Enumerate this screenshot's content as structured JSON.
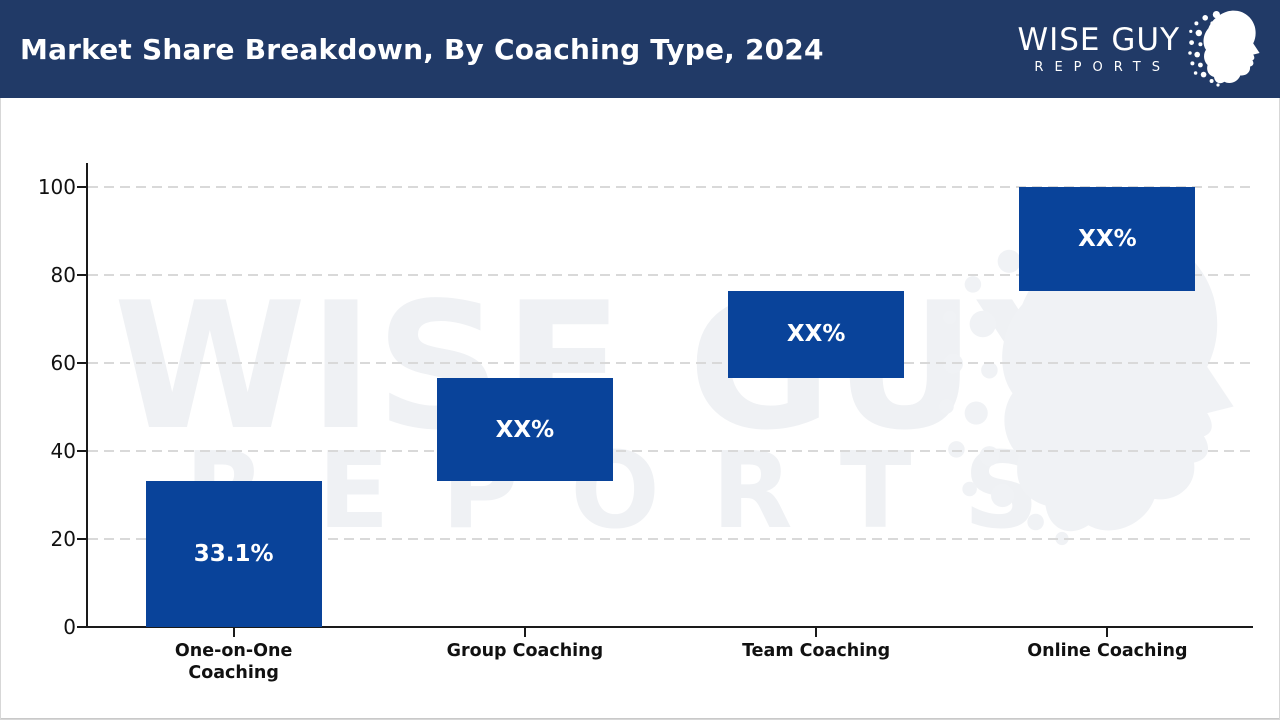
{
  "header": {
    "title": "Market Share Breakdown, By Coaching Type, 2024",
    "logo": {
      "line1": "WISE GUY",
      "line2": "REPORTS"
    }
  },
  "watermark": {
    "line1": "WISE GUY",
    "line2": "REPORTS"
  },
  "colors": {
    "header_navy": "#213a67",
    "bar_blue": "#09439a",
    "watermark_gray": "#eff1f4",
    "axis_black": "#1a1a1a"
  },
  "chart_data": {
    "type": "bar",
    "subtype": "waterfall",
    "title": "Market Share Breakdown, By Coaching Type, 2024",
    "xlabel": "",
    "ylabel": "",
    "categories": [
      "One-on-One Coaching",
      "Group Coaching",
      "Team Coaching",
      "Online Coaching"
    ],
    "bars": [
      {
        "category": "One-on-One Coaching",
        "tick_lines": [
          "One-on-One",
          "Coaching"
        ],
        "start": 0,
        "end": 33.1,
        "label": "33.1%"
      },
      {
        "category": "Group Coaching",
        "tick_lines": [
          "Group Coaching"
        ],
        "start": 33.1,
        "end": 56.6,
        "label": "XX%"
      },
      {
        "category": "Team Coaching",
        "tick_lines": [
          "Team Coaching"
        ],
        "start": 56.6,
        "end": 76.4,
        "label": "XX%"
      },
      {
        "category": "Online Coaching",
        "tick_lines": [
          "Online Coaching"
        ],
        "start": 76.4,
        "end": 100,
        "label": "XX%"
      }
    ],
    "ylim": [
      0,
      100
    ],
    "yticks": [
      0,
      20,
      40,
      60,
      80,
      100
    ],
    "grid": true,
    "legend": false,
    "bar_color": "#09439a",
    "bar_label_color": "#ffffff"
  }
}
